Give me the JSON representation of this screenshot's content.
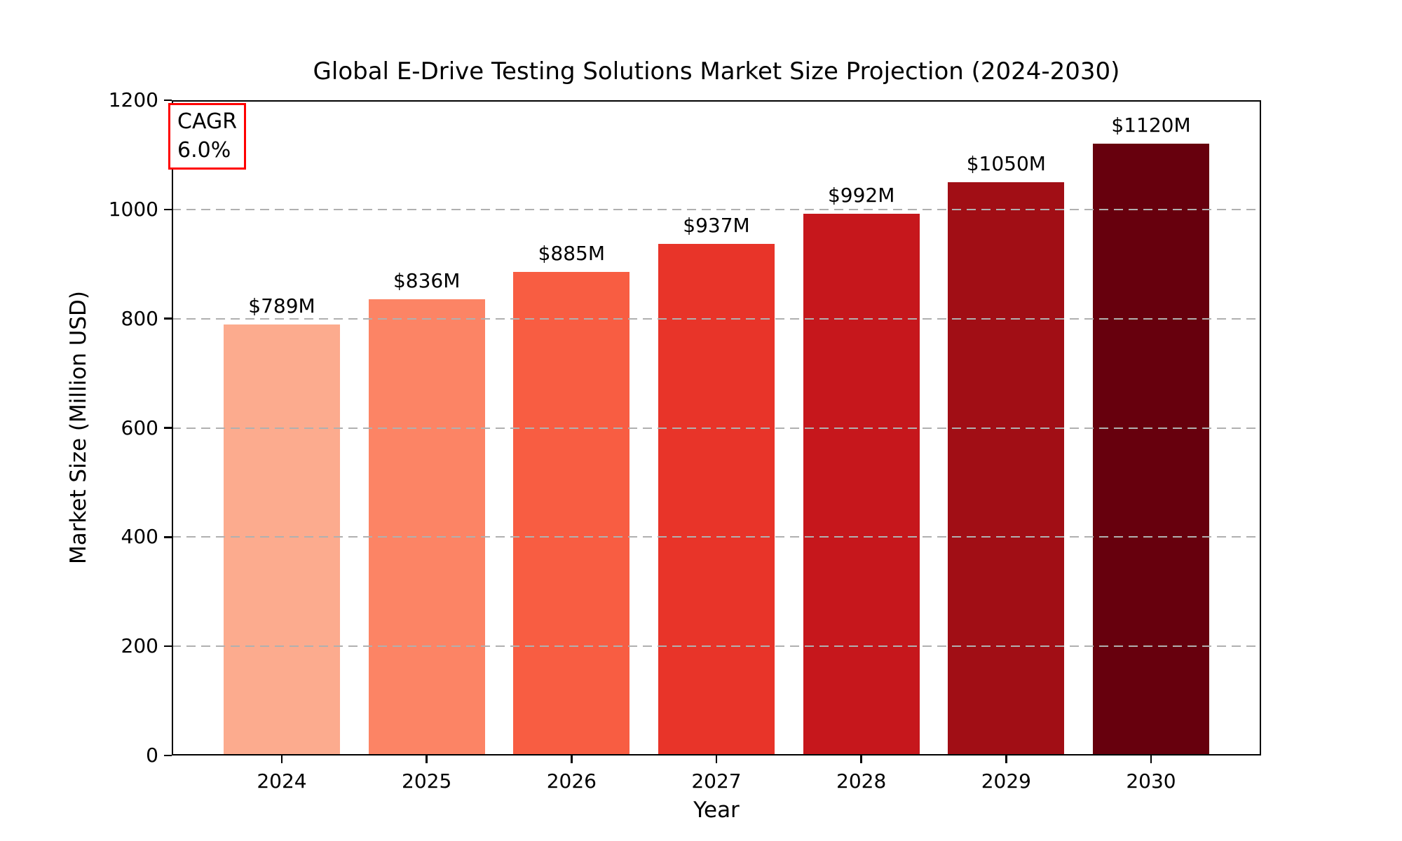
{
  "figure": {
    "title": "Global E-Drive Testing Solutions Market Size Projection (2024-2030)"
  },
  "annotation": {
    "line1": "CAGR",
    "line2": "6.0%",
    "border_color": "#ff0000"
  },
  "chart_data": {
    "type": "bar",
    "title": "Global E-Drive Testing Solutions Market Size Projection (2024-2030)",
    "xlabel": "Year",
    "ylabel": "Market Size (Million USD)",
    "categories": [
      "2024",
      "2025",
      "2026",
      "2027",
      "2028",
      "2029",
      "2030"
    ],
    "values": [
      789,
      836,
      885,
      937,
      992,
      1050,
      1120
    ],
    "bar_labels": [
      "$789M",
      "$836M",
      "$885M",
      "$937M",
      "$992M",
      "$1050M",
      "$1120M"
    ],
    "bar_colors": [
      "#fcab8e",
      "#fc8465",
      "#f85d42",
      "#e83429",
      "#c6171c",
      "#a10e15",
      "#67000d"
    ],
    "ylim": [
      0,
      1200
    ],
    "yticks": [
      0,
      200,
      400,
      600,
      800,
      1000,
      1200
    ],
    "grid": "horizontal-dashed",
    "grid_color": "#b0b0b0",
    "legend_position": "none",
    "annotation_text": "CAGR 6.0%"
  }
}
